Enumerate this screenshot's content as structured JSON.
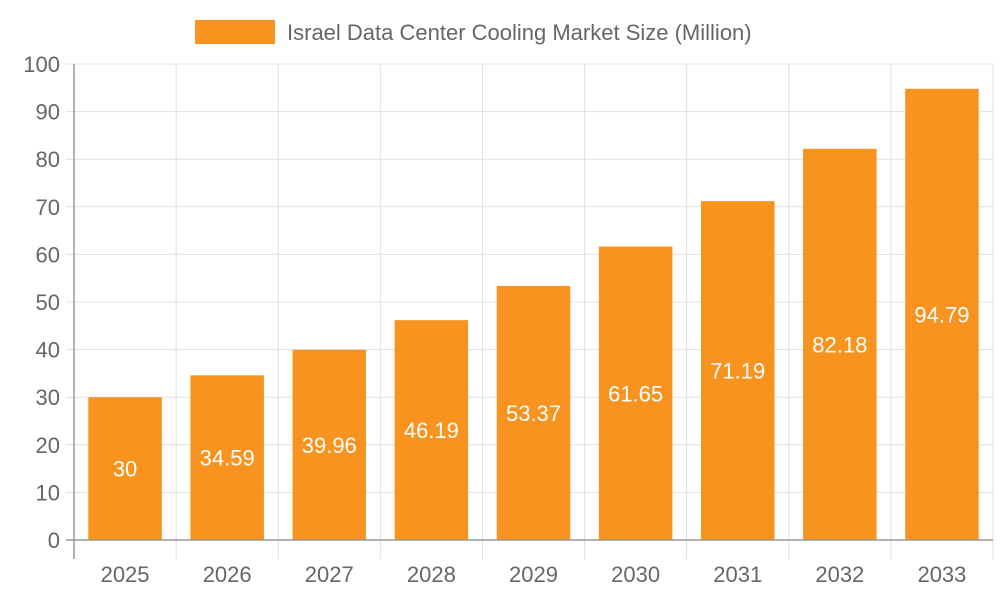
{
  "chart_data": {
    "type": "bar",
    "title": "",
    "xlabel": "",
    "ylabel": "",
    "categories": [
      "2025",
      "2026",
      "2027",
      "2028",
      "2029",
      "2030",
      "2031",
      "2032",
      "2033"
    ],
    "series": [
      {
        "name": "Israel Data Center Cooling Market Size (Million)",
        "values": [
          30,
          34.59,
          39.96,
          46.19,
          53.37,
          61.65,
          71.19,
          82.18,
          94.79
        ]
      }
    ],
    "ylim": [
      0,
      100
    ],
    "yticks": [
      0,
      10,
      20,
      30,
      40,
      50,
      60,
      70,
      80,
      90,
      100
    ],
    "grid": true,
    "legend": "top-center",
    "data_labels": true,
    "colors": {
      "bar": "#f7931e",
      "label": "#ffffff",
      "grid": "#e0e0e0",
      "axis": "#999999",
      "text": "#666666"
    }
  }
}
